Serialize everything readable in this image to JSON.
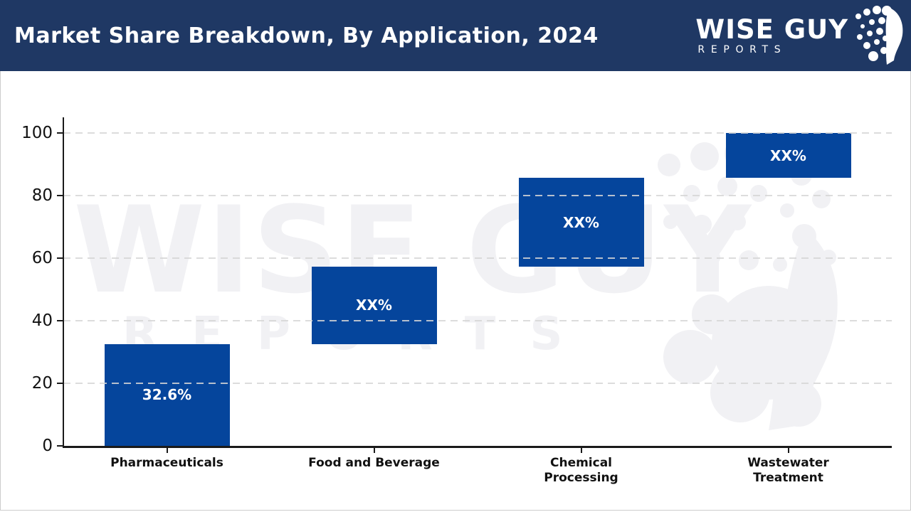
{
  "header": {
    "title": "Market Share Breakdown, By Application, 2024",
    "logo": {
      "wordmark": "WISE GUY",
      "subtext": "REPORTS"
    }
  },
  "watermark": {
    "line1": "WISE GUY",
    "line2": "REPORTS"
  },
  "colors": {
    "header_bg": "#1f3864",
    "bar": "#05459c",
    "grid": "#d9d9d9",
    "axis": "#1a1a1a",
    "tick_text": "#111111",
    "bar_label_text": "#ffffff",
    "category_text": "#111111",
    "watermark": "#f1f1f4",
    "frame_border": "#cccccc"
  },
  "chart_data": {
    "type": "bar",
    "subtype": "floating-waterfall",
    "title": "Market Share Breakdown, By Application, 2024",
    "categories": [
      "Pharmaceuticals",
      "Food and Beverage",
      "Chemical Processing",
      "Wastewater Treatment"
    ],
    "category_lines": [
      [
        "Pharmaceuticals"
      ],
      [
        "Food and Beverage"
      ],
      [
        "Chemical",
        "Processing"
      ],
      [
        "Wastewater",
        "Treatment"
      ]
    ],
    "segments": [
      {
        "category": "Pharmaceuticals",
        "start": 0,
        "end": 32.6,
        "label": "32.6%"
      },
      {
        "category": "Food and Beverage",
        "start": 32.6,
        "end": 57.2,
        "label": "XX%"
      },
      {
        "category": "Chemical Processing",
        "start": 57.2,
        "end": 85.6,
        "label": "XX%"
      },
      {
        "category": "Wastewater Treatment",
        "start": 85.6,
        "end": 100,
        "label": "XX%"
      }
    ],
    "yticks": [
      0,
      20,
      40,
      60,
      80,
      100
    ],
    "ylim": [
      0,
      105
    ],
    "xlabel": "",
    "ylabel": "",
    "grid": "horizontal-dashed",
    "legend": "none"
  }
}
